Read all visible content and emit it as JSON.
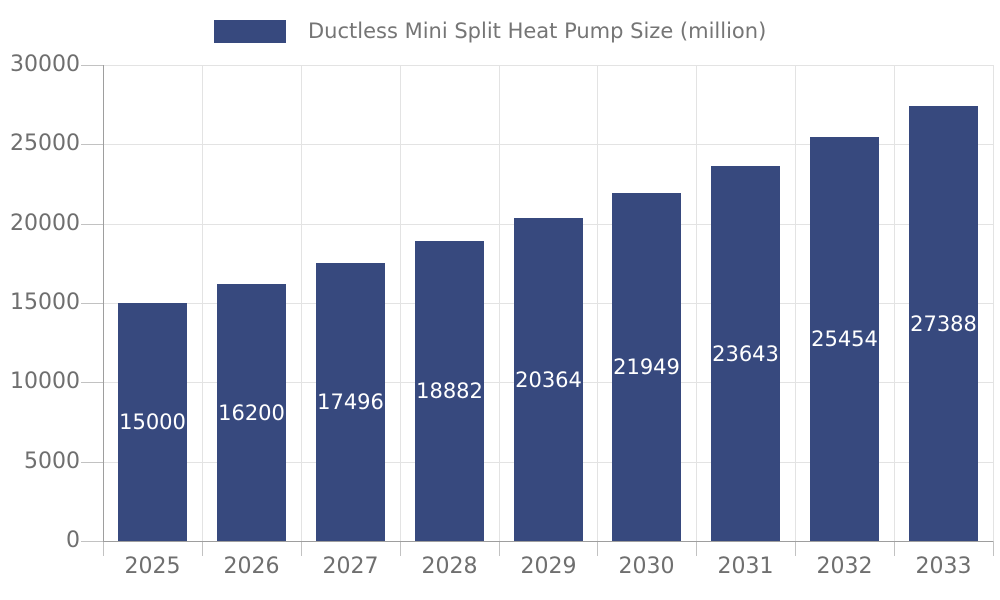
{
  "colors": {
    "bar": "#37497E",
    "grid": "#e3e3e3",
    "axis": "#9e9e9e",
    "tick": "#c2c2c2",
    "text": "#6f6f6f",
    "legend_text": "#757575",
    "value_label": "#ffffff",
    "background": "#ffffff"
  },
  "legend": {
    "label": "Ductless Mini Split Heat Pump Size (million)"
  },
  "chart_data": {
    "type": "bar",
    "title": "Ductless Mini Split Heat Pump Size (million)",
    "series_name": "Ductless Mini Split Heat Pump Size (million)",
    "categories": [
      "2025",
      "2026",
      "2027",
      "2028",
      "2029",
      "2030",
      "2031",
      "2032",
      "2033"
    ],
    "values": [
      15000,
      16200,
      17496,
      18882,
      20364,
      21949,
      23643,
      25454,
      27388
    ],
    "xlabel": "",
    "ylabel": "",
    "ylim": [
      0,
      30000
    ],
    "yticks": [
      0,
      5000,
      10000,
      15000,
      20000,
      25000,
      30000
    ],
    "grid": true,
    "legend_position": "top-center",
    "value_labels": "inside-center",
    "bar_color": "#37497E"
  }
}
